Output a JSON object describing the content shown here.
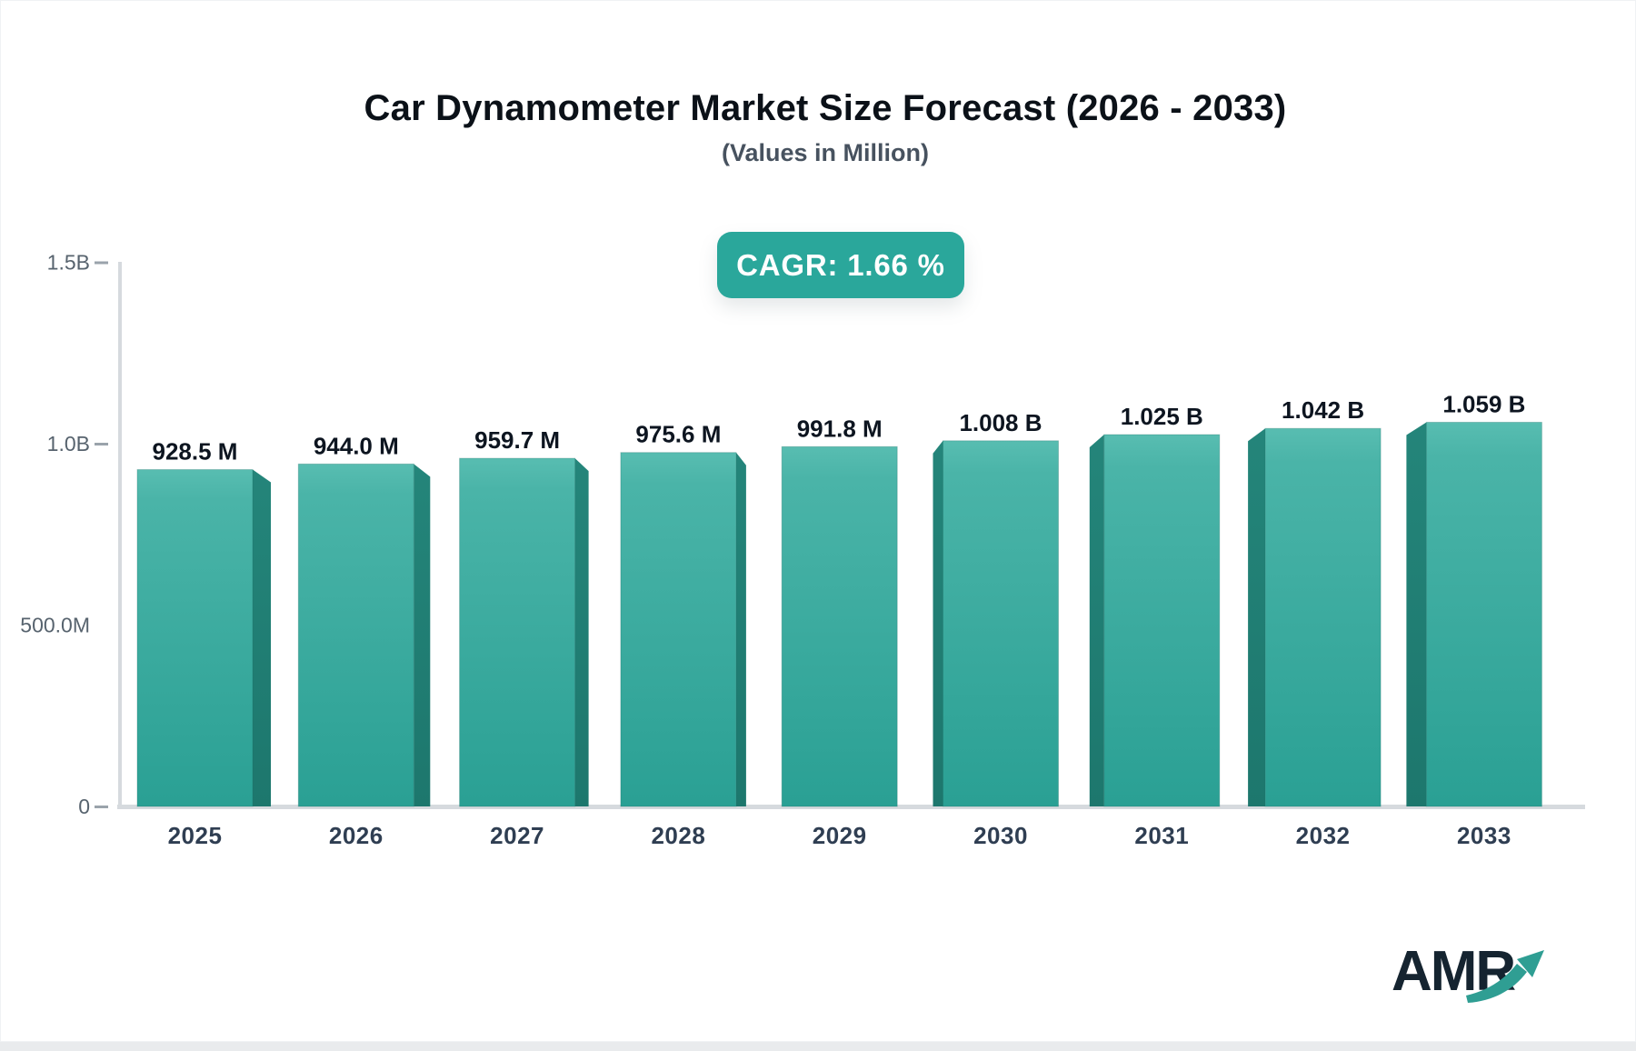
{
  "header": {
    "title": "Car Dynamometer Market Size Forecast (2026 - 2033)",
    "subtitle": "(Values in Million)"
  },
  "badge": {
    "label": "CAGR: 1.66 %"
  },
  "chart_data": {
    "type": "bar",
    "title": "Car Dynamometer Market Size Forecast (2026 - 2033)",
    "subtitle": "(Values in Million)",
    "cagr_percent": 1.66,
    "categories": [
      "2025",
      "2026",
      "2027",
      "2028",
      "2029",
      "2030",
      "2031",
      "2032",
      "2033"
    ],
    "values": [
      928.5,
      944.0,
      959.7,
      975.6,
      991.8,
      1008,
      1025,
      1042,
      1059
    ],
    "value_labels": [
      "928.5 M",
      "944.0 M",
      "959.7 M",
      "975.6 M",
      "991.8 M",
      "1.008 B",
      "1.025 B",
      "1.042 B",
      "1.059 B"
    ],
    "values_unit_hint": "millions",
    "xlabel": "",
    "ylabel": "",
    "ylim": [
      0,
      1500
    ],
    "grid": false,
    "legend": false,
    "y_axis_ticks": [
      {
        "label": "1.5B",
        "value": 1500,
        "dash": true
      },
      {
        "label": "1.0B",
        "value": 1000,
        "dash": true
      },
      {
        "label": "500.0M",
        "value": 500,
        "dash": false
      },
      {
        "label": "0",
        "value": 0,
        "dash": true
      }
    ],
    "colors": {
      "bar_front_top": "#58bdb1",
      "bar_front_bottom": "#2aa094",
      "bar_side": "#1f7c71",
      "badge_bg": "#2aa79b",
      "axis_line": "#d6dade",
      "tick_dash": "#9aa3ab",
      "y_label_text": "#57636e",
      "x_label_text": "#2f3e52",
      "value_label_text": "#0d1520"
    }
  },
  "footer": {
    "logo_text": "AMR",
    "logo_arrow_color": "#2f9e93",
    "logo_text_color": "#152430"
  }
}
